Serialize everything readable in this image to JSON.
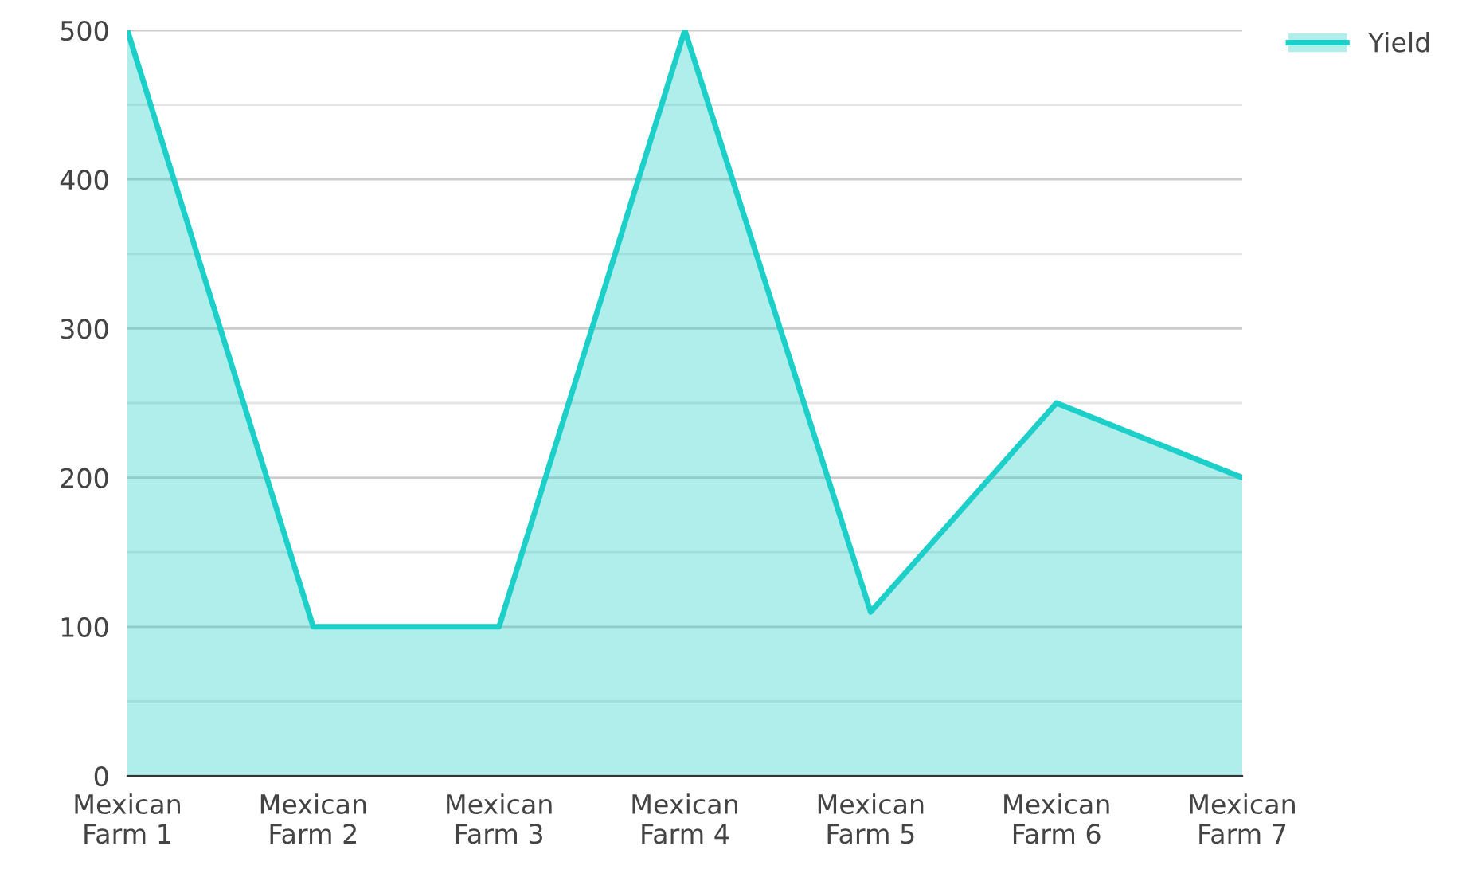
{
  "chart_data": {
    "type": "area",
    "categories": [
      "Mexican Farm 1",
      "Mexican Farm 2",
      "Mexican Farm 3",
      "Mexican Farm 4",
      "Mexican Farm 5",
      "Mexican Farm 6",
      "Mexican Farm 7"
    ],
    "series": [
      {
        "name": "Yield",
        "color": "#1ccfc9",
        "values": [
          500,
          100,
          100,
          500,
          110,
          250,
          200
        ]
      }
    ],
    "ylim": [
      0,
      500
    ],
    "yticks": [
      0,
      {
        "value": 50,
        "label": null
      },
      100,
      {
        "value": 150,
        "label": null
      },
      200,
      {
        "value": 250,
        "label": null
      },
      300,
      {
        "value": 350,
        "label": null
      },
      400,
      {
        "value": 450,
        "label": null
      },
      500
    ],
    "grid": "y",
    "legend": "top right"
  }
}
